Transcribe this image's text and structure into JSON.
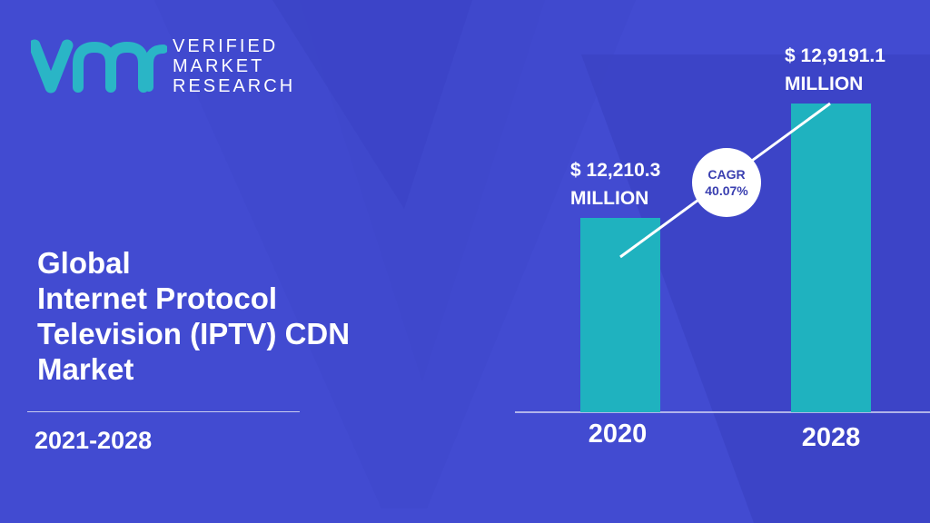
{
  "brand": {
    "logo_letters": "vmr",
    "line1": "VERIFIED",
    "line2": "MARKET",
    "line3": "RESEARCH"
  },
  "title_lines": [
    "Global",
    "Internet Protocol",
    "Television (IPTV) CDN",
    "Market"
  ],
  "period": "2021-2028",
  "cagr": {
    "label": "CAGR",
    "value": "40.07%"
  },
  "colors": {
    "background": "#3f48cc",
    "bar": "#1fb2bf",
    "text": "#ffffff",
    "accent_logo": "#2ab5c6"
  },
  "chart_data": {
    "type": "bar",
    "categories": [
      "2020",
      "2028"
    ],
    "values": [
      12210.3,
      129191.1
    ],
    "data_labels": [
      [
        "$ 12,210.3",
        "MILLION"
      ],
      [
        "$ 12,9191.1",
        "MILLION"
      ]
    ],
    "unit": "MILLION",
    "title": "",
    "xlabel": "",
    "ylabel": ""
  }
}
